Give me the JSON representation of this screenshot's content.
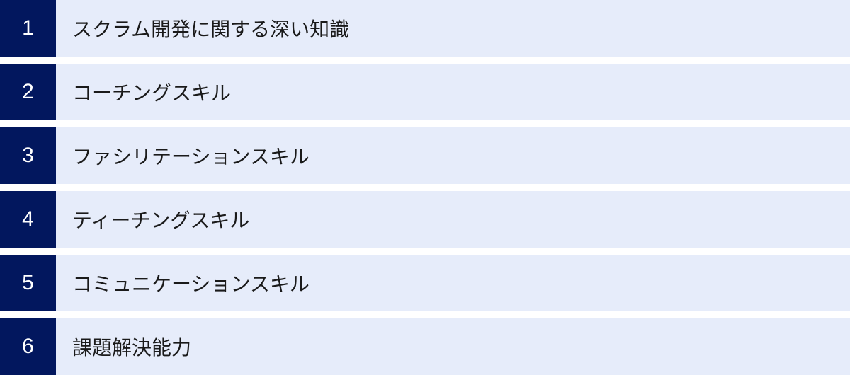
{
  "items": [
    {
      "number": "1",
      "label": "スクラム開発に関する深い知識"
    },
    {
      "number": "2",
      "label": "コーチングスキル"
    },
    {
      "number": "3",
      "label": "ファシリテーションスキル"
    },
    {
      "number": "4",
      "label": "ティーチングスキル"
    },
    {
      "number": "5",
      "label": "コミュニケーションスキル"
    },
    {
      "number": "6",
      "label": "課題解決能力"
    }
  ],
  "colors": {
    "number_bg": "#02175e",
    "label_bg": "#e6ecfa"
  }
}
